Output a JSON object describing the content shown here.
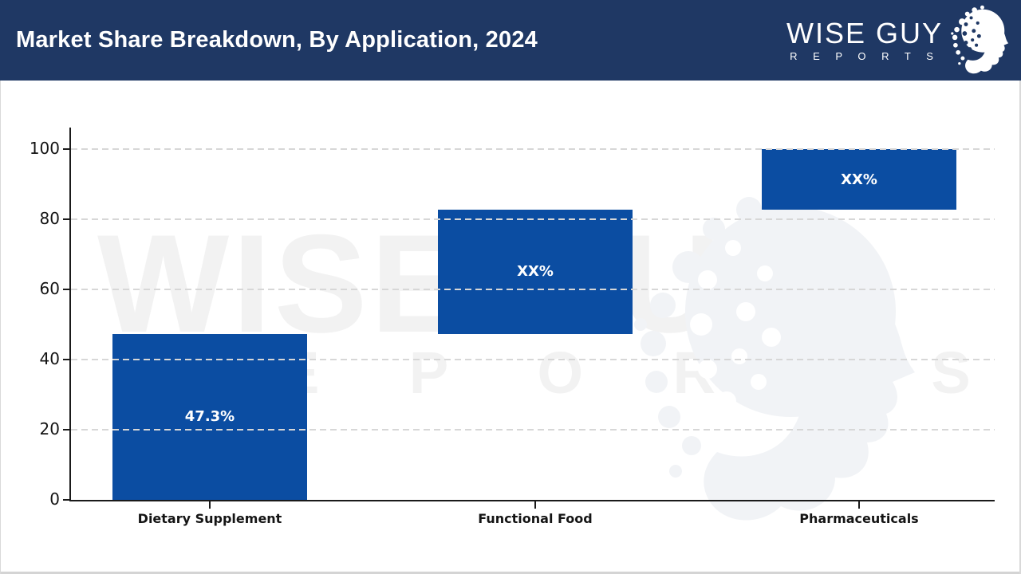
{
  "header": {
    "title": "Market Share Breakdown, By Application, 2024",
    "logo_line1": "WISE GUY",
    "logo_line2": "R E P O R T S",
    "bg_color": "#1f3864"
  },
  "watermark": {
    "line1": "WISE GUY",
    "line2": "R E P O R T S"
  },
  "chart_data": {
    "type": "bar",
    "subtype": "stacked_waterfall_segments",
    "title": "Market Share Breakdown, By Application, 2024",
    "categories": [
      "Dietary Supplement",
      "Functional Food",
      "Pharmaceuticals"
    ],
    "segments": [
      {
        "category": "Dietary Supplement",
        "start": 0,
        "end": 47.3,
        "label": "47.3%"
      },
      {
        "category": "Functional Food",
        "start": 47.3,
        "end": 82.7,
        "label": "XX%"
      },
      {
        "category": "Pharmaceuticals",
        "start": 82.7,
        "end": 100,
        "label": "XX%"
      }
    ],
    "xlabel": "",
    "ylabel": "",
    "yticks": [
      0,
      20,
      40,
      60,
      80,
      100
    ],
    "ylim": [
      0,
      106
    ],
    "grid": {
      "horizontal": true,
      "style": "dashed",
      "color": "#d7d7d7",
      "above_bars": true
    },
    "legend": "none",
    "bar_color": "#0b4da2",
    "value_label_color": "#ffffff",
    "axis_color": "#1a1a1a"
  }
}
